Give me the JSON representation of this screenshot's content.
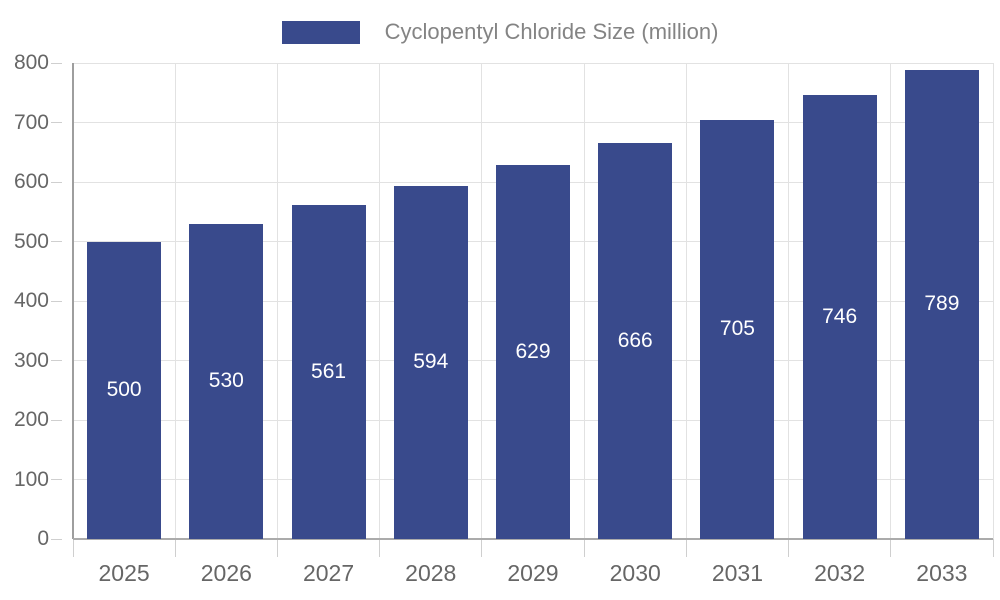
{
  "chart_data": {
    "type": "bar",
    "title": "",
    "legend_label": "Cyclopentyl Chloride Size (million)",
    "legend_position": "top-center",
    "categories": [
      "2025",
      "2026",
      "2027",
      "2028",
      "2029",
      "2030",
      "2031",
      "2032",
      "2033"
    ],
    "values": [
      500,
      530,
      561,
      594,
      629,
      666,
      705,
      746,
      789
    ],
    "xlabel": "",
    "ylabel": "",
    "ylim": [
      0,
      800
    ],
    "ytick_interval": 100,
    "ytick_labels": [
      "0",
      "100",
      "200",
      "300",
      "400",
      "500",
      "600",
      "700",
      "800"
    ],
    "grid": true,
    "bar_label_position": "inside-center",
    "colors": {
      "bar": "#394A8C",
      "bar_label": "#FFFFFF",
      "axis_tick_label": "#666666",
      "legend_text": "#848484",
      "gridline": "#E2E2E2",
      "axis_line_y": "#9E9E9E",
      "axis_line_x": "#ABABAB",
      "tick_mark": "#CFCFCF",
      "background": "#FFFFFF"
    }
  }
}
